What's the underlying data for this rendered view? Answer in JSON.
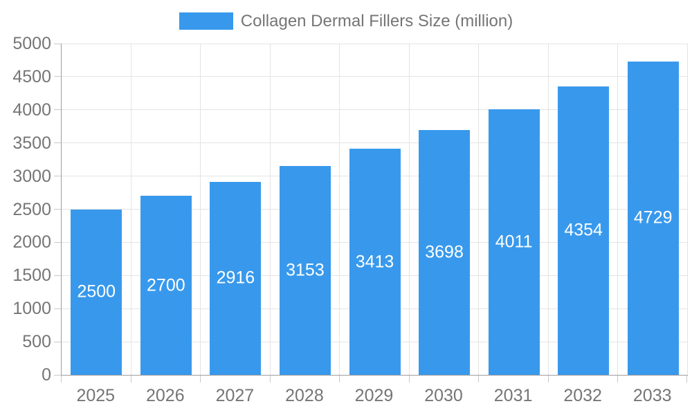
{
  "colors": {
    "bar": "#3899EC",
    "grid": "#E4E4E4",
    "axis": "#9E9E9E",
    "tick": "#C8C8C8",
    "label_text": "#757575",
    "value_text": "#FFFFFF"
  },
  "chart_data": {
    "type": "bar",
    "title": "Collagen Dermal Fillers Size (million)",
    "categories": [
      "2025",
      "2026",
      "2027",
      "2028",
      "2029",
      "2030",
      "2031",
      "2032",
      "2033"
    ],
    "values": [
      2500,
      2700,
      2916,
      3153,
      3413,
      3698,
      4011,
      4354,
      4729
    ],
    "xlabel": "",
    "ylabel": "",
    "ylim": [
      0,
      5000
    ],
    "yticks": [
      0,
      500,
      1000,
      1500,
      2000,
      2500,
      3000,
      3500,
      4000,
      4500,
      5000
    ],
    "grid": true,
    "legend_position": "top",
    "value_label_position": "inside-center"
  }
}
